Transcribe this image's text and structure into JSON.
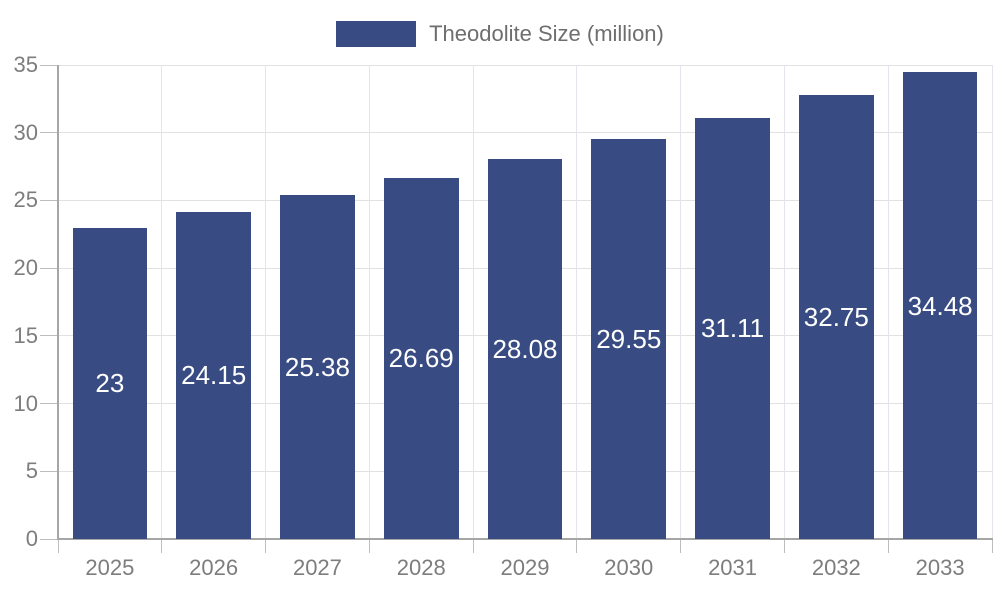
{
  "legend": {
    "label": "Theodolite Size (million)"
  },
  "colors": {
    "bar": "#384C83",
    "horizontal_grid": "#e2e2e2",
    "vertical_grid": "#e4e4ee",
    "axis_line": "#a6a6a6",
    "tick_mark": "#bdbdbd",
    "axis_text": "#7d7d7d",
    "legend_text": "#6e6e6e",
    "value_label_text": "#ffffff"
  },
  "chart_data": {
    "type": "bar",
    "title": "Theodolite Size (million)",
    "series_name": "Theodolite Size (million)",
    "categories": [
      "2025",
      "2026",
      "2027",
      "2028",
      "2029",
      "2030",
      "2031",
      "2032",
      "2033"
    ],
    "values": [
      23,
      24.15,
      25.38,
      26.69,
      28.08,
      29.55,
      31.11,
      32.75,
      34.48
    ],
    "xlabel": "",
    "ylabel": "",
    "ylim": [
      0,
      35
    ],
    "yticks": [
      0,
      5,
      10,
      15,
      20,
      25,
      30,
      35
    ],
    "grid": true,
    "grid_vertical_at_category_boundaries": true,
    "legend_position": "top-center",
    "value_labels_position": "inside-center"
  }
}
